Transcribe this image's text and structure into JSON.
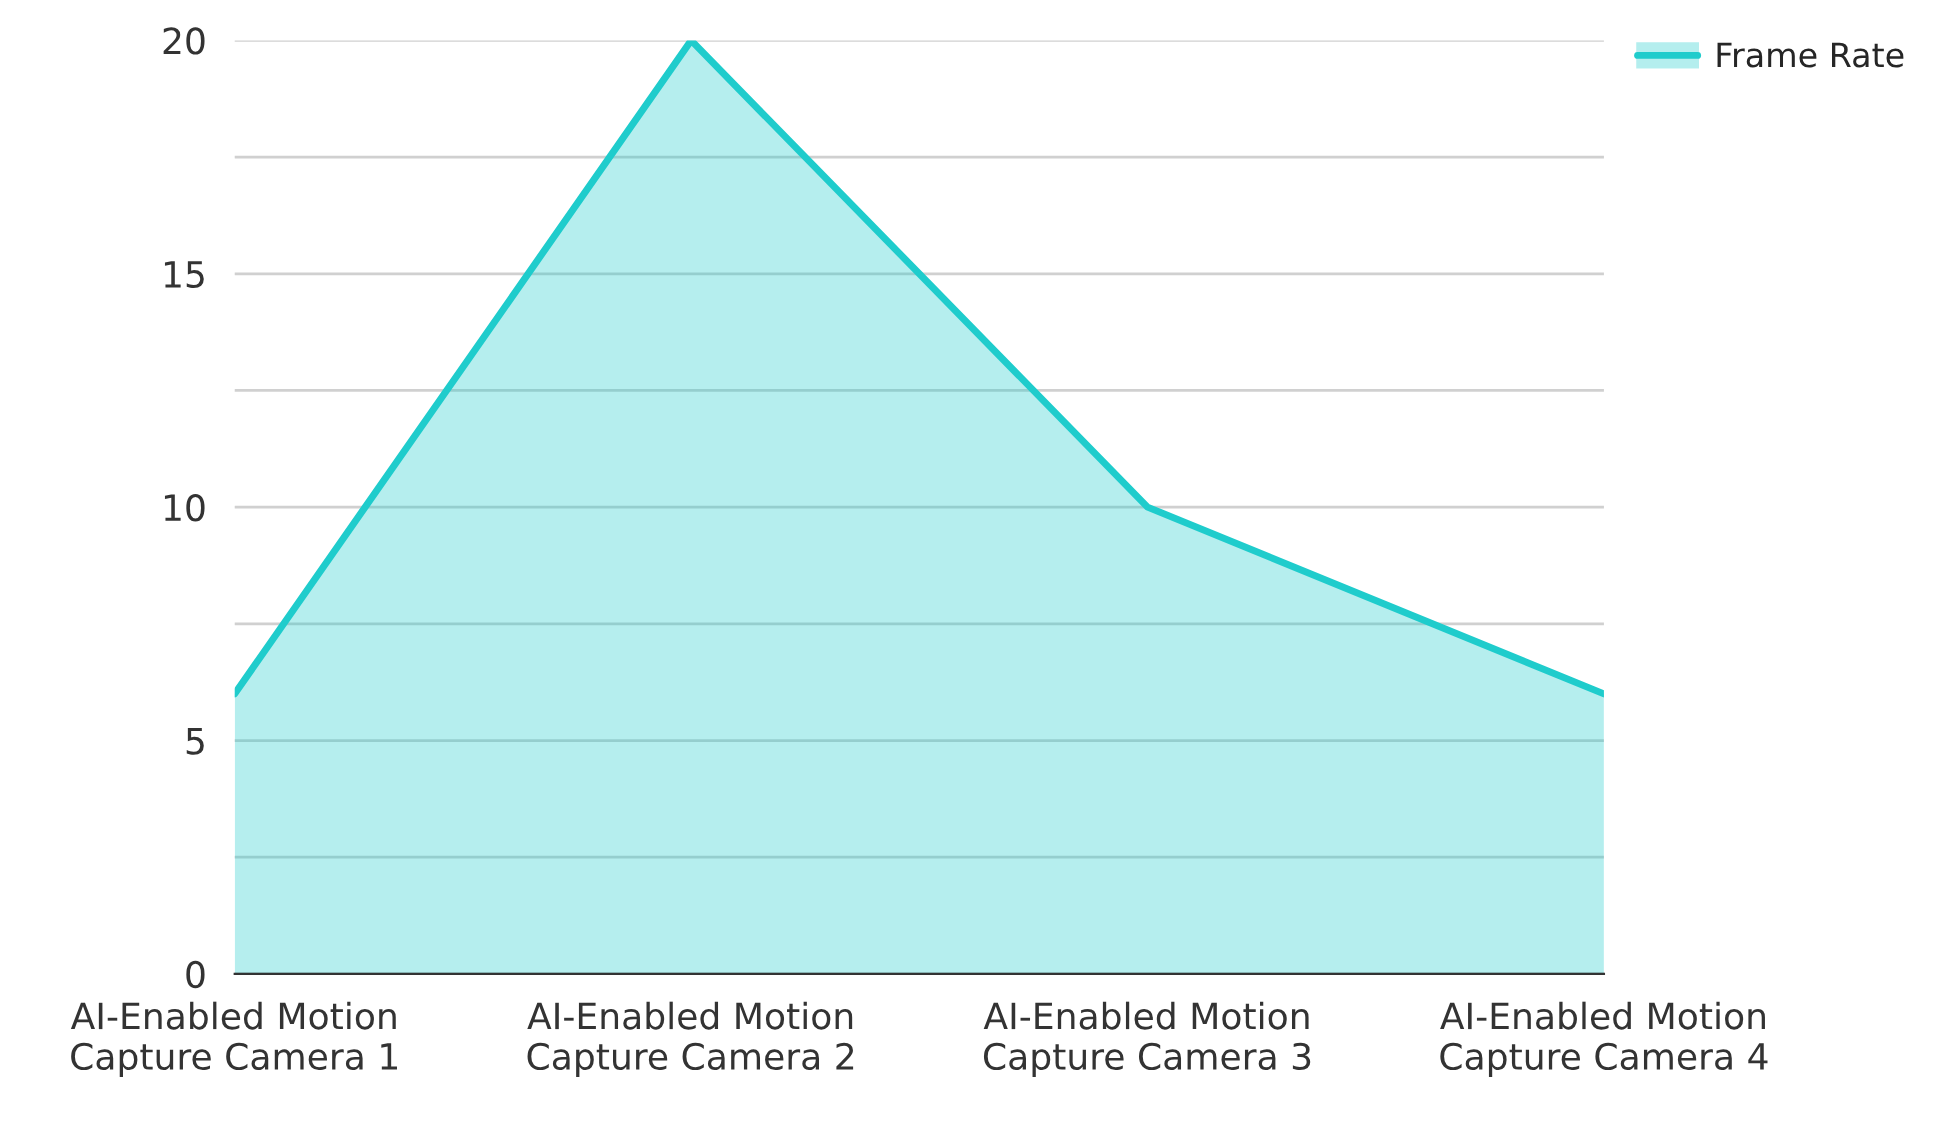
{
  "chart_data": {
    "type": "area",
    "categories": [
      "AI-Enabled Motion\nCapture Camera 1",
      "AI-Enabled Motion\nCapture Camera 2",
      "AI-Enabled Motion\nCapture Camera 3",
      "AI-Enabled Motion\nCapture Camera 4"
    ],
    "series": [
      {
        "name": "Frame Rate",
        "color": "#1fcccc",
        "values": [
          6,
          20,
          10,
          6
        ]
      }
    ],
    "ylim": [
      0,
      20
    ],
    "yticks": [
      0,
      {
        "value": 2.5,
        "label": null
      },
      5,
      {
        "value": 7.5,
        "label": null
      },
      10,
      {
        "value": 12.5,
        "label": null
      },
      15,
      {
        "value": 17.5,
        "label": null
      },
      20
    ],
    "grid": "y",
    "legend": "top right"
  }
}
